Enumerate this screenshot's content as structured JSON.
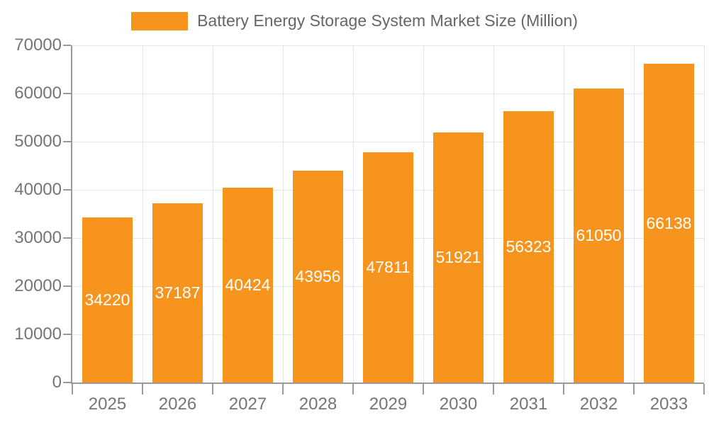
{
  "chart_data": {
    "type": "bar",
    "title": "Battery Energy Storage System Market Size (Million)",
    "categories": [
      "2025",
      "2026",
      "2027",
      "2028",
      "2029",
      "2030",
      "2031",
      "2032",
      "2033"
    ],
    "values": [
      34220,
      37187,
      40424,
      43956,
      47811,
      51921,
      56323,
      61050,
      66138
    ],
    "series": [
      {
        "name": "Battery Energy Storage System Market Size (Million)",
        "values": [
          34220,
          37187,
          40424,
          43956,
          47811,
          51921,
          56323,
          61050,
          66138
        ]
      }
    ],
    "xlabel": "",
    "ylabel": "",
    "ylim": [
      0,
      70000
    ],
    "ytick_step": 10000,
    "yticks": [
      0,
      10000,
      20000,
      30000,
      40000,
      50000,
      60000,
      70000
    ],
    "grid": "horizontal-and-vertical",
    "legend_position": "top-center",
    "value_label_position": "inside-center"
  },
  "style": {
    "bar_color": "#F7941E",
    "grid_color": "#E5E5E5",
    "axis_color": "#999999",
    "tick_text_color": "#757575",
    "legend_text_color": "#666666",
    "value_label_color": "#FFFFFF",
    "background_color": "#FFFFFF"
  }
}
